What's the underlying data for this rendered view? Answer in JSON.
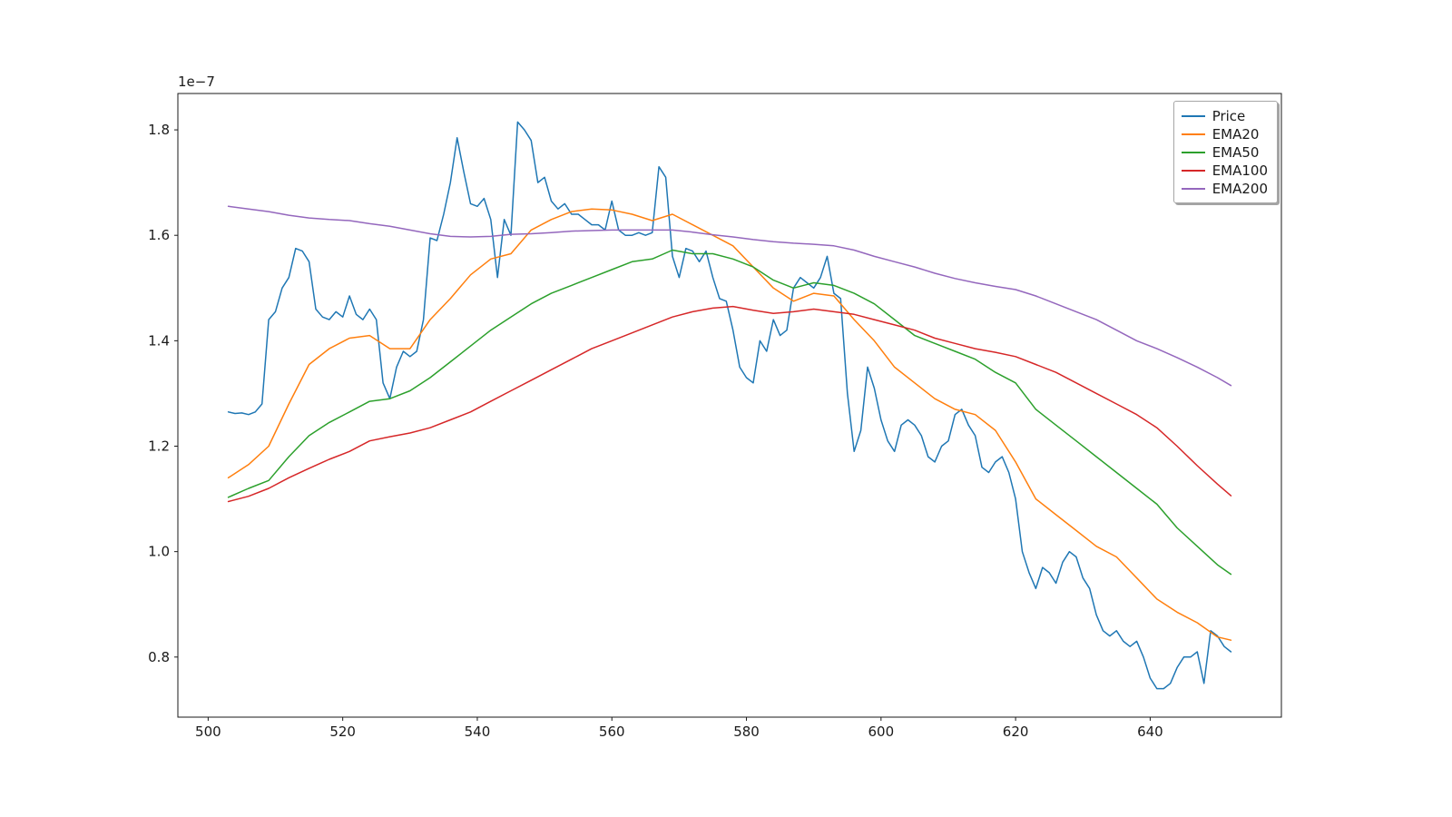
{
  "figure": {
    "y_offset_label": "1e−7"
  },
  "chart_data": {
    "type": "line",
    "title": "",
    "xlabel": "",
    "ylabel": "",
    "y_scale_note": "values are ×1e-7",
    "grid": false,
    "legend_position": "upper right",
    "xlim": [
      495.5,
      659.5
    ],
    "ylim": [
      0.686,
      1.869
    ],
    "xtick_values": [
      500,
      520,
      540,
      560,
      580,
      600,
      620,
      640
    ],
    "xtick_labels": [
      "500",
      "520",
      "540",
      "560",
      "580",
      "600",
      "620",
      "640"
    ],
    "ytick_values": [
      0.8,
      1.0,
      1.2,
      1.4,
      1.6,
      1.8
    ],
    "ytick_labels": [
      "0.8",
      "1.0",
      "1.2",
      "1.4",
      "1.6",
      "1.8"
    ],
    "series": [
      {
        "name": "Price",
        "color": "#1f77b4",
        "x_start": 503,
        "x_step": 1,
        "values": [
          1.265,
          1.262,
          1.263,
          1.26,
          1.265,
          1.28,
          1.44,
          1.455,
          1.5,
          1.52,
          1.575,
          1.57,
          1.55,
          1.46,
          1.445,
          1.44,
          1.455,
          1.445,
          1.485,
          1.45,
          1.44,
          1.46,
          1.44,
          1.32,
          1.29,
          1.35,
          1.38,
          1.37,
          1.38,
          1.44,
          1.595,
          1.59,
          1.64,
          1.7,
          1.785,
          1.72,
          1.66,
          1.655,
          1.67,
          1.63,
          1.52,
          1.63,
          1.6,
          1.815,
          1.8,
          1.78,
          1.7,
          1.71,
          1.665,
          1.65,
          1.66,
          1.64,
          1.64,
          1.63,
          1.62,
          1.62,
          1.61,
          1.665,
          1.61,
          1.6,
          1.6,
          1.605,
          1.6,
          1.605,
          1.73,
          1.71,
          1.56,
          1.52,
          1.575,
          1.57,
          1.55,
          1.57,
          1.52,
          1.48,
          1.475,
          1.42,
          1.35,
          1.33,
          1.32,
          1.4,
          1.38,
          1.44,
          1.41,
          1.42,
          1.5,
          1.52,
          1.51,
          1.5,
          1.52,
          1.56,
          1.49,
          1.48,
          1.3,
          1.19,
          1.23,
          1.35,
          1.31,
          1.25,
          1.21,
          1.19,
          1.24,
          1.25,
          1.24,
          1.22,
          1.18,
          1.17,
          1.2,
          1.21,
          1.26,
          1.27,
          1.24,
          1.22,
          1.16,
          1.15,
          1.17,
          1.18,
          1.15,
          1.1,
          1.0,
          0.96,
          0.93,
          0.97,
          0.96,
          0.94,
          0.98,
          1.0,
          0.99,
          0.95,
          0.93,
          0.88,
          0.85,
          0.84,
          0.85,
          0.83,
          0.82,
          0.83,
          0.8,
          0.76,
          0.74,
          0.74,
          0.75,
          0.78,
          0.8,
          0.8,
          0.81,
          0.75,
          0.85,
          0.84,
          0.82,
          0.81
        ]
      },
      {
        "name": "EMA20",
        "color": "#ff7f0e",
        "x": [
          503,
          506,
          509,
          512,
          515,
          518,
          521,
          524,
          527,
          530,
          533,
          536,
          539,
          542,
          545,
          548,
          551,
          554,
          557,
          560,
          563,
          566,
          569,
          572,
          575,
          578,
          581,
          584,
          587,
          590,
          593,
          596,
          599,
          602,
          605,
          608,
          611,
          614,
          617,
          620,
          623,
          626,
          629,
          632,
          635,
          638,
          641,
          644,
          647,
          650,
          652
        ],
        "values": [
          1.14,
          1.165,
          1.2,
          1.28,
          1.355,
          1.385,
          1.405,
          1.41,
          1.385,
          1.385,
          1.44,
          1.48,
          1.525,
          1.555,
          1.565,
          1.61,
          1.63,
          1.645,
          1.65,
          1.648,
          1.64,
          1.628,
          1.64,
          1.62,
          1.6,
          1.58,
          1.54,
          1.5,
          1.475,
          1.49,
          1.485,
          1.44,
          1.4,
          1.35,
          1.32,
          1.29,
          1.27,
          1.26,
          1.23,
          1.17,
          1.1,
          1.07,
          1.04,
          1.01,
          0.99,
          0.95,
          0.91,
          0.885,
          0.865,
          0.838,
          0.832
        ]
      },
      {
        "name": "EMA50",
        "color": "#2ca02c",
        "x": [
          503,
          506,
          509,
          512,
          515,
          518,
          521,
          524,
          527,
          530,
          533,
          536,
          539,
          542,
          545,
          548,
          551,
          554,
          557,
          560,
          563,
          566,
          569,
          572,
          575,
          578,
          581,
          584,
          587,
          590,
          593,
          596,
          599,
          602,
          605,
          608,
          611,
          614,
          617,
          620,
          623,
          626,
          629,
          632,
          635,
          638,
          641,
          644,
          647,
          650,
          652
        ],
        "values": [
          1.103,
          1.12,
          1.135,
          1.18,
          1.22,
          1.245,
          1.265,
          1.285,
          1.29,
          1.305,
          1.33,
          1.36,
          1.39,
          1.42,
          1.445,
          1.47,
          1.49,
          1.505,
          1.52,
          1.535,
          1.55,
          1.555,
          1.572,
          1.565,
          1.565,
          1.555,
          1.54,
          1.515,
          1.5,
          1.51,
          1.505,
          1.49,
          1.47,
          1.44,
          1.41,
          1.395,
          1.38,
          1.365,
          1.34,
          1.32,
          1.27,
          1.24,
          1.21,
          1.18,
          1.15,
          1.12,
          1.09,
          1.045,
          1.01,
          0.975,
          0.957
        ]
      },
      {
        "name": "EMA100",
        "color": "#d62728",
        "x": [
          503,
          506,
          509,
          512,
          515,
          518,
          521,
          524,
          527,
          530,
          533,
          536,
          539,
          542,
          545,
          548,
          551,
          554,
          557,
          560,
          563,
          566,
          569,
          572,
          575,
          578,
          581,
          584,
          587,
          590,
          593,
          596,
          599,
          602,
          605,
          608,
          611,
          614,
          617,
          620,
          623,
          626,
          629,
          632,
          635,
          638,
          641,
          644,
          647,
          650,
          652
        ],
        "values": [
          1.095,
          1.105,
          1.12,
          1.14,
          1.158,
          1.175,
          1.19,
          1.21,
          1.218,
          1.225,
          1.235,
          1.25,
          1.265,
          1.285,
          1.305,
          1.325,
          1.345,
          1.365,
          1.385,
          1.4,
          1.415,
          1.43,
          1.445,
          1.455,
          1.462,
          1.465,
          1.458,
          1.452,
          1.455,
          1.46,
          1.455,
          1.45,
          1.44,
          1.43,
          1.42,
          1.405,
          1.395,
          1.385,
          1.378,
          1.37,
          1.355,
          1.34,
          1.32,
          1.3,
          1.28,
          1.26,
          1.235,
          1.2,
          1.163,
          1.128,
          1.106
        ]
      },
      {
        "name": "EMA200",
        "color": "#9467bd",
        "x": [
          503,
          506,
          509,
          512,
          515,
          518,
          521,
          524,
          527,
          530,
          533,
          536,
          539,
          542,
          545,
          548,
          551,
          554,
          557,
          560,
          563,
          566,
          569,
          572,
          575,
          578,
          581,
          584,
          587,
          590,
          593,
          596,
          599,
          602,
          605,
          608,
          611,
          614,
          617,
          620,
          623,
          626,
          629,
          632,
          635,
          638,
          641,
          644,
          647,
          650,
          652
        ],
        "values": [
          1.655,
          1.65,
          1.645,
          1.638,
          1.633,
          1.63,
          1.628,
          1.622,
          1.617,
          1.61,
          1.603,
          1.598,
          1.597,
          1.598,
          1.602,
          1.603,
          1.605,
          1.608,
          1.609,
          1.61,
          1.61,
          1.61,
          1.61,
          1.606,
          1.601,
          1.597,
          1.592,
          1.588,
          1.585,
          1.583,
          1.58,
          1.572,
          1.56,
          1.55,
          1.54,
          1.528,
          1.518,
          1.51,
          1.503,
          1.497,
          1.485,
          1.47,
          1.455,
          1.44,
          1.42,
          1.4,
          1.385,
          1.368,
          1.35,
          1.33,
          1.315
        ]
      }
    ]
  }
}
